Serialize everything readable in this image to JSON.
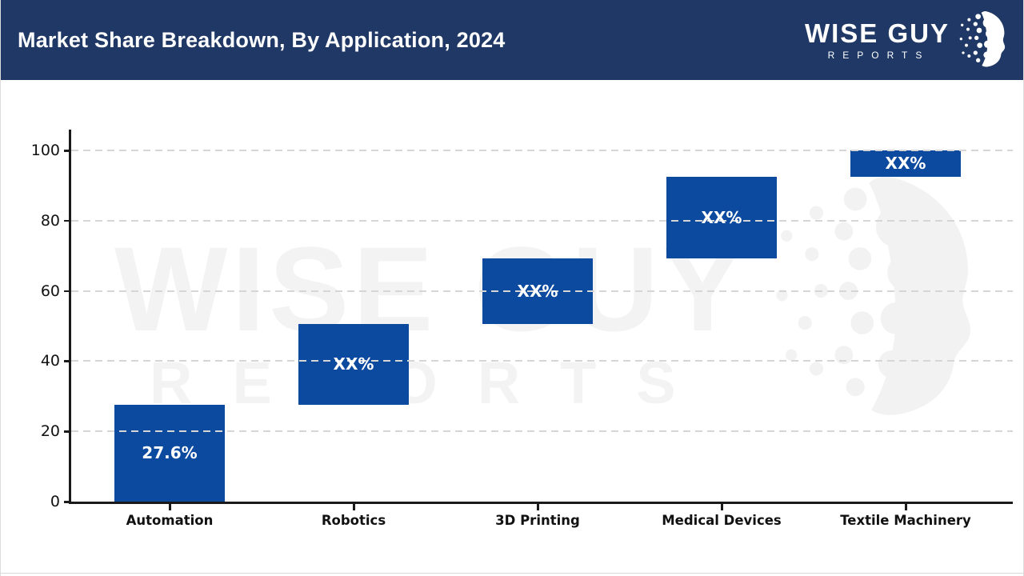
{
  "header": {
    "title": "Market Share Breakdown, By Application, 2024",
    "logo": {
      "line1": "WISE GUY",
      "line2": "REPORTS"
    }
  },
  "watermark": {
    "line1": "WISE GUY",
    "line2": "REPORTS"
  },
  "chart_data": {
    "type": "bar",
    "subtype": "waterfall",
    "title": "Market Share Breakdown, By Application, 2024",
    "categories": [
      "Automation",
      "Robotics",
      "3D Printing",
      "Medical Devices",
      "Textile Machinery"
    ],
    "series": [
      {
        "name": "Market Share (%)",
        "segments": [
          {
            "category": "Automation",
            "start": 0,
            "end": 27.6,
            "label": "27.6%"
          },
          {
            "category": "Robotics",
            "start": 27.6,
            "end": 50.6,
            "label": "XX%"
          },
          {
            "category": "3D Printing",
            "start": 50.6,
            "end": 69.2,
            "label": "XX%"
          },
          {
            "category": "Medical Devices",
            "start": 69.2,
            "end": 92.5,
            "label": "XX%"
          },
          {
            "category": "Textile Machinery",
            "start": 92.5,
            "end": 100,
            "label": "XX%"
          }
        ]
      }
    ],
    "xlabel": "",
    "ylabel": "",
    "yticks": [
      0,
      20,
      40,
      60,
      80,
      100
    ],
    "ylim": [
      0,
      106
    ],
    "grid": {
      "axis": "y",
      "style": "dashed",
      "over_bars": true
    },
    "legend": "none",
    "colors": {
      "bar": "#0c4aa0",
      "grid": "#d6d6d6",
      "axis": "#1a1a1a",
      "header_bg": "#1f3865",
      "bar_label_text": "#ffffff",
      "watermark": "#f2f2f2"
    }
  }
}
